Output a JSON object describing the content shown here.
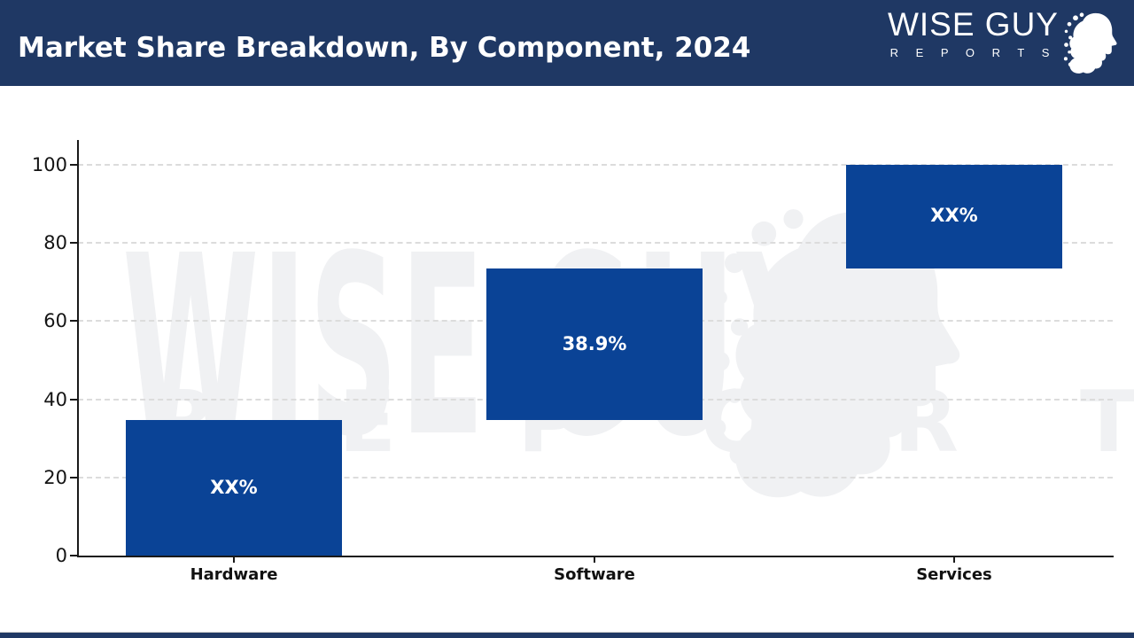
{
  "header": {
    "title": "Market Share Breakdown, By Component, 2024",
    "logo_line1": "WISE GUY",
    "logo_line2": "R E P O R T S"
  },
  "watermark": {
    "line1": "WISE GUY",
    "line2": "R E P O R T S"
  },
  "chart_data": {
    "type": "bar",
    "variant": "waterfall",
    "title": "Market Share Breakdown, By Component, 2024",
    "categories": [
      "Hardware",
      "Software",
      "Services"
    ],
    "bars": [
      {
        "category": "Hardware",
        "start": 0,
        "end": 34.6,
        "label": "XX%"
      },
      {
        "category": "Software",
        "start": 34.6,
        "end": 73.5,
        "label": "38.9%"
      },
      {
        "category": "Services",
        "start": 73.5,
        "end": 100,
        "label": "XX%"
      }
    ],
    "yticks": [
      0,
      20,
      40,
      60,
      80,
      100
    ],
    "ylim": [
      0,
      105
    ],
    "xlabel": "",
    "ylabel": "",
    "grid": "horizontal-dashed",
    "legend": "none",
    "bar_color": "#0a4396",
    "bar_label_color": "#ffffff"
  },
  "colors": {
    "header_bg": "#1f3864",
    "footer_bg": "#1f3864",
    "bar": "#0a4396",
    "watermark": "#f0f1f3",
    "grid": "#dcdcdc",
    "axis": "#1a1a1a",
    "background": "#ffffff"
  }
}
